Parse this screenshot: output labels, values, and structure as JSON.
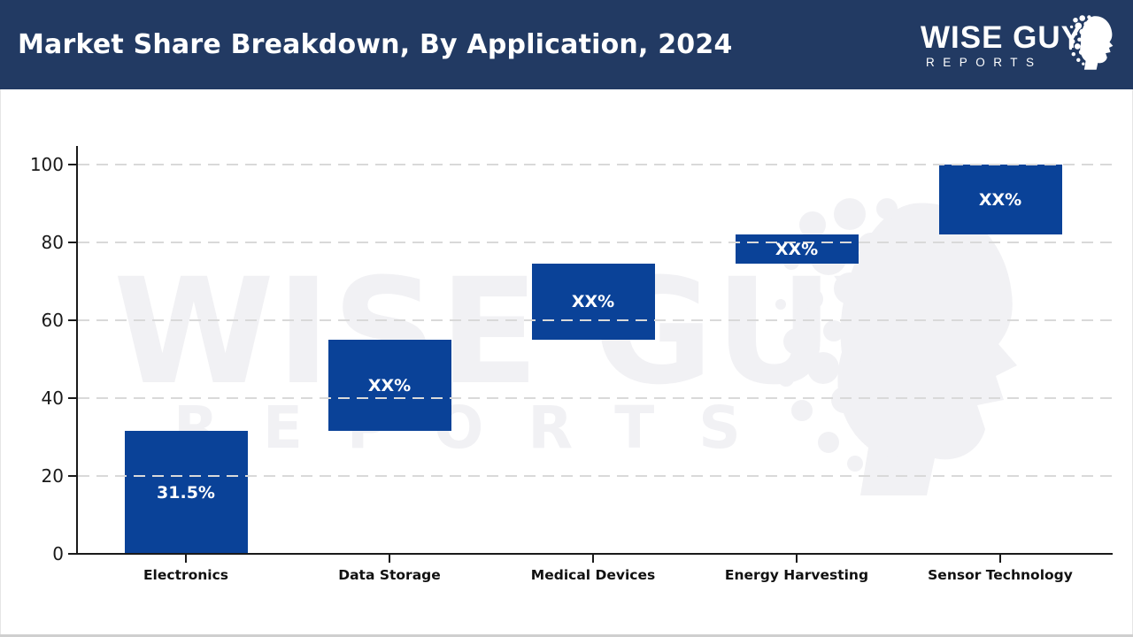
{
  "header": {
    "title": "Market Share Breakdown, By Application, 2024",
    "logo": {
      "line1": "WISE GUY",
      "line2": "REPORTS"
    }
  },
  "watermark": {
    "line1": "WISE GUY",
    "line2": "REPORTS"
  },
  "colors": {
    "header_bg": "#223a63",
    "bar": "#0a4298",
    "grid": "#d9d9d9",
    "axis": "#1a1a1a",
    "tick_text": "#1a1a1a",
    "category_text": "#111111",
    "bar_label_text": "#ffffff",
    "watermark": "#f1f1f4",
    "bottom_strip": "#cfcfcf"
  },
  "chart_data": {
    "type": "bar",
    "subtype": "waterfall",
    "title": "Market Share Breakdown, By Application, 2024",
    "categories": [
      "Electronics",
      "Data Storage",
      "Medical Devices",
      "Energy Harvesting",
      "Sensor Technology"
    ],
    "segments": [
      {
        "category": "Electronics",
        "start": 0,
        "end": 31.5,
        "label": "31.5%"
      },
      {
        "category": "Data Storage",
        "start": 31.5,
        "end": 55,
        "label": "XX%"
      },
      {
        "category": "Medical Devices",
        "start": 55,
        "end": 74.5,
        "label": "XX%"
      },
      {
        "category": "Energy Harvesting",
        "start": 74.5,
        "end": 82,
        "label": "XX%"
      },
      {
        "category": "Sensor Technology",
        "start": 82,
        "end": 100,
        "label": "XX%"
      }
    ],
    "xlabel": "",
    "ylabel": "",
    "ylim": [
      0,
      105
    ],
    "yticks": [
      0,
      20,
      40,
      60,
      80,
      100
    ],
    "grid": "horizontal-dashed",
    "legend": "none"
  }
}
